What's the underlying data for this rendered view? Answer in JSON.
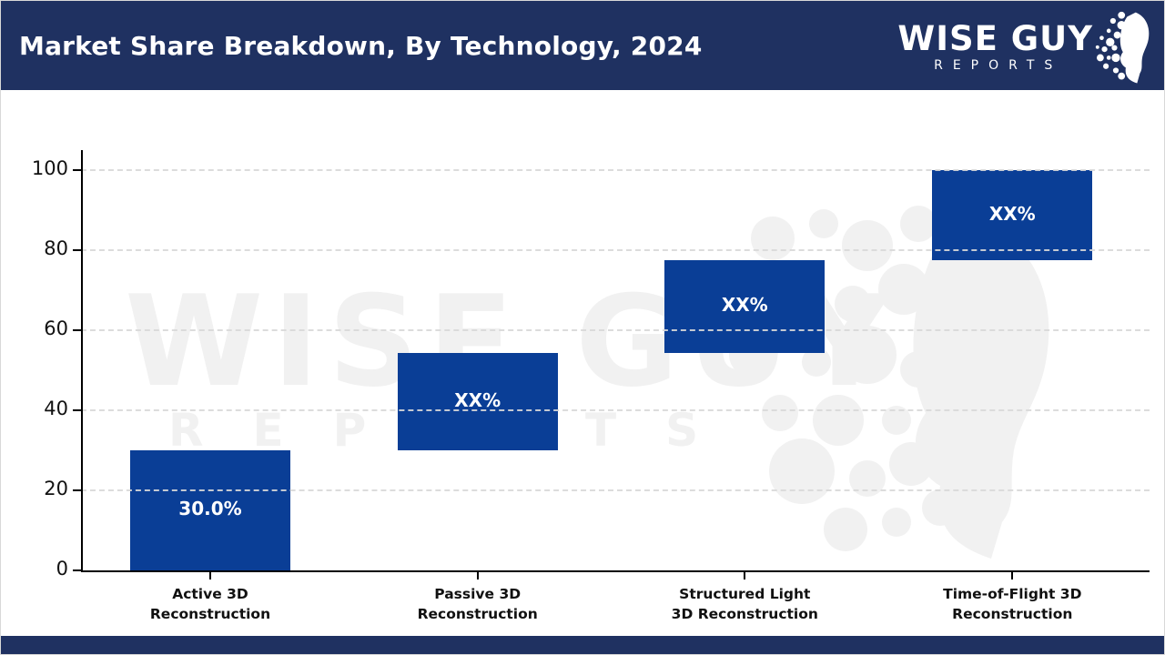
{
  "header": {
    "title": "Market Share Breakdown, By Technology, 2024",
    "logo": {
      "name": "WISE GUY",
      "sub": "REPORTS"
    }
  },
  "watermark": {
    "name": "WISE GUY",
    "sub": "REPORTS"
  },
  "chart_data": {
    "type": "bar",
    "subtype": "floating-segment-waterfall",
    "title": "Market Share Breakdown, By Technology, 2024",
    "categories": [
      "Active 3D\nReconstruction",
      "Passive 3D\nReconstruction",
      "Structured Light\n3D Reconstruction",
      "Time-of-Flight 3D\nReconstruction"
    ],
    "bars": [
      {
        "start": 0,
        "end": 30,
        "label": "30.0%"
      },
      {
        "start": 30,
        "end": 54.3,
        "label": "XX%"
      },
      {
        "start": 54.3,
        "end": 77.5,
        "label": "XX%"
      },
      {
        "start": 77.5,
        "end": 100,
        "label": "XX%"
      }
    ],
    "yticks": [
      0,
      20,
      40,
      60,
      80,
      100
    ],
    "ylim": [
      0,
      104.8
    ],
    "xlabel": "",
    "ylabel": "",
    "grid": "horizontal-dashed",
    "legend": "none",
    "colors": {
      "bar": "#0a3e96",
      "bar_label": "#ffffff",
      "header_bg": "#1f3161",
      "footer_bg": "#1f3161",
      "grid": "#d9d9d9",
      "axis": "#000000",
      "watermark": "#f1f1f1"
    }
  }
}
